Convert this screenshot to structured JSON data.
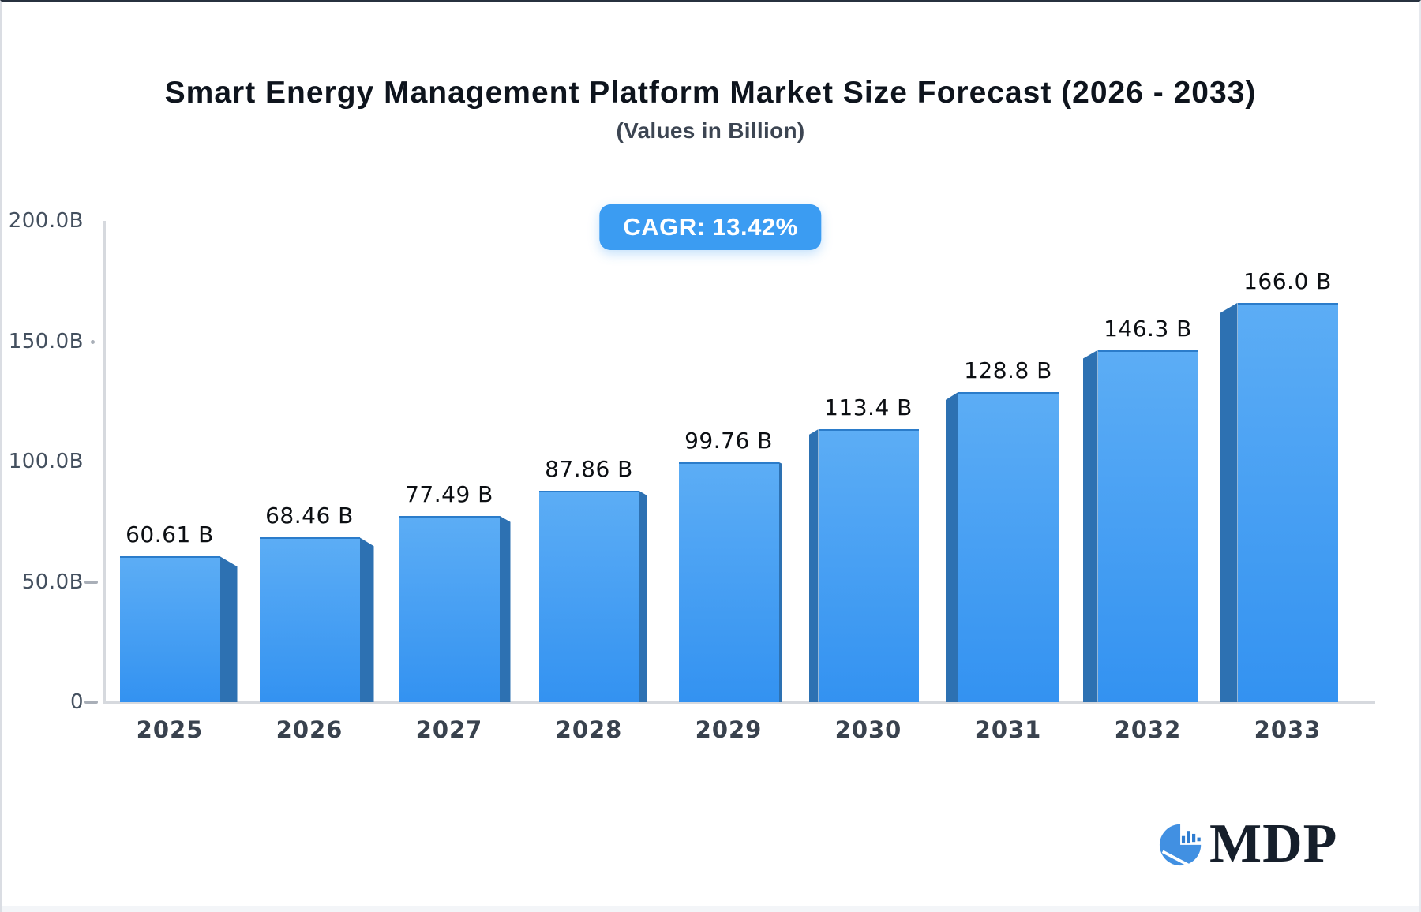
{
  "header": {
    "title": "Smart Energy Management Platform Market Size Forecast (2026 - 2033)",
    "subtitle": "(Values in Billion)",
    "badge_label": "CAGR: 13.42%"
  },
  "chart_data": {
    "type": "bar",
    "title": "Smart Energy Management Platform Market Size Forecast (2026 - 2033)",
    "subtitle": "(Values in Billion)",
    "categories": [
      "2025",
      "2026",
      "2027",
      "2028",
      "2029",
      "2030",
      "2031",
      "2032",
      "2033"
    ],
    "values": [
      60.61,
      68.46,
      77.49,
      87.86,
      99.76,
      113.4,
      128.8,
      146.3,
      166.0
    ],
    "value_labels": [
      "60.61 B",
      "68.46 B",
      "77.49 B",
      "87.86 B",
      "99.76 B",
      "113.4 B",
      "128.8 B",
      "146.3 B",
      "166.0 B"
    ],
    "xlabel": "",
    "ylabel": "",
    "ylim": [
      0,
      200
    ],
    "grid": false,
    "legend": "none",
    "y_axis": {
      "ticks": [
        {
          "label": "200.0B",
          "value": 200,
          "marker": "none"
        },
        {
          "label": "150.0B",
          "value": 150,
          "marker": "dot"
        },
        {
          "label": "100.0B",
          "value": 100,
          "marker": "none"
        },
        {
          "label": "50.0B",
          "value": 50,
          "marker": "dash"
        },
        {
          "label": "0",
          "value": 0,
          "marker": "dash"
        }
      ]
    },
    "style": "3d-extruded-bars"
  },
  "colors": {
    "badge_bg": "#3b9cf2",
    "bar_top": "#5cadf5",
    "bar_bottom": "#3392f1",
    "bar_side": "#2d71b2",
    "axis": "#d6d9de",
    "tick_text": "#44505f",
    "value_text": "#0c0f13",
    "logo_blue": "#4190e2"
  },
  "brand": {
    "name": "MDP"
  }
}
